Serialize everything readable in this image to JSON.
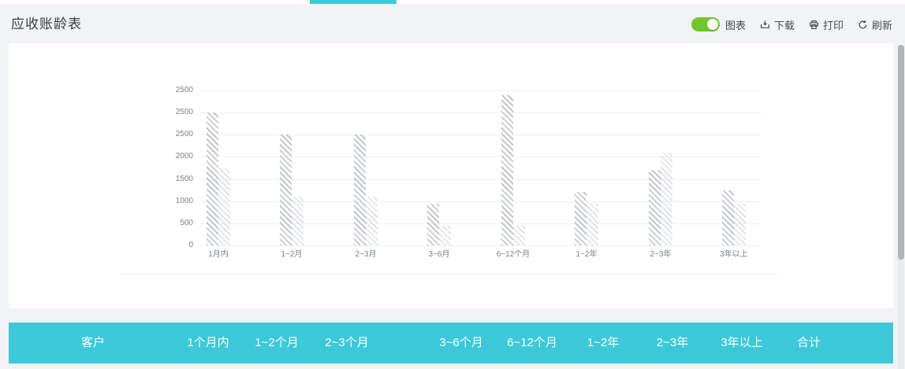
{
  "window": {
    "top_accent_color": "#3cc8d9"
  },
  "header": {
    "title": "应收账龄表",
    "toolbar": {
      "chart_toggle_label": "图表",
      "chart_toggle_on": true,
      "download_label": "下载",
      "print_label": "打印",
      "refresh_label": "刷新"
    }
  },
  "chart_data": {
    "type": "bar",
    "title": "",
    "categories": [
      "1月内",
      "1~2月",
      "2~3月",
      "3~6月",
      "6~12个月",
      "1~2年",
      "2~3年",
      "3年以上"
    ],
    "series": [
      {
        "name": "bar-series-1",
        "values": [
          3000,
          2500,
          2500,
          950,
          3400,
          1200,
          1700,
          1250
        ]
      },
      {
        "name": "bar-series-2",
        "values": [
          1750,
          1100,
          1100,
          450,
          450,
          950,
          2100,
          950
        ]
      }
    ],
    "ylim": [
      0,
      3500
    ],
    "y_tick_labels_top_to_bottom": [
      "2500",
      "2500",
      "2500",
      "2000",
      "1500",
      "1000",
      "500",
      "0"
    ],
    "xlabel": "",
    "ylabel": "",
    "grid": true,
    "legend_position": "none",
    "bar_pattern": "diagonal-hatch",
    "hatch_colors": [
      "#b9bec9",
      "#dcdfe4"
    ]
  },
  "table": {
    "header_bg": "#3cc8d9",
    "columns": [
      "客户",
      "1个月内",
      "1~2个月",
      "2~3个月",
      "3~6个月",
      "6~12个月",
      "1~2年",
      "2~3年",
      "3年以上",
      "合计"
    ]
  }
}
